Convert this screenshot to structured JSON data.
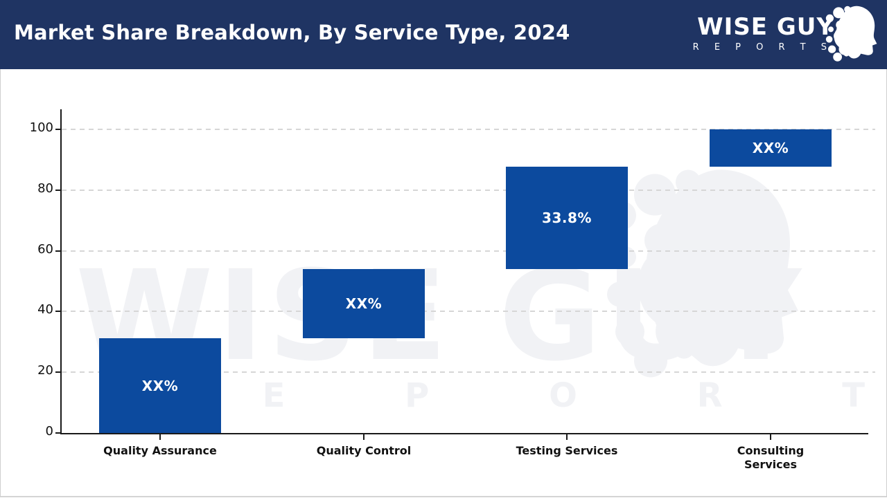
{
  "header": {
    "title": "Market Share Breakdown, By Service Type, 2024",
    "bg_color": "#1f3463",
    "logo": {
      "wordmark": "WISE GUY",
      "subtext": "R E P O R T S",
      "head_icon": "head-profile-dots"
    }
  },
  "watermark": {
    "line1": "WISE GUY",
    "line2": "R E P O R T S",
    "head_icon": "head-profile-dots"
  },
  "chart_data": {
    "type": "bar",
    "variant": "waterfall",
    "title": "Market Share Breakdown, By Service Type, 2024",
    "categories": [
      "Quality Assurance",
      "Quality Control",
      "Testing Services",
      "Consulting\nServices"
    ],
    "series": [
      {
        "name": "Market share (%)",
        "segments": [
          {
            "category": "Quality Assurance",
            "start": 0,
            "end": 31.2,
            "label": "XX%"
          },
          {
            "category": "Quality Control",
            "start": 31.2,
            "end": 53.9,
            "label": "XX%"
          },
          {
            "category": "Testing Services",
            "start": 53.9,
            "end": 87.8,
            "label": "33.8%"
          },
          {
            "category": "Consulting Services",
            "start": 87.8,
            "end": 100,
            "label": "XX%"
          }
        ]
      }
    ],
    "ylim": [
      0,
      100
    ],
    "yticks": [
      0,
      20,
      40,
      60,
      80,
      100
    ],
    "grid": {
      "horizontal": true,
      "style": "dashed",
      "color": "#d6d6d6"
    },
    "bar_color": "#0c4a9e",
    "bar_label_color": "#ffffff",
    "axis_color": "#1a1a1a",
    "legend": "none"
  }
}
